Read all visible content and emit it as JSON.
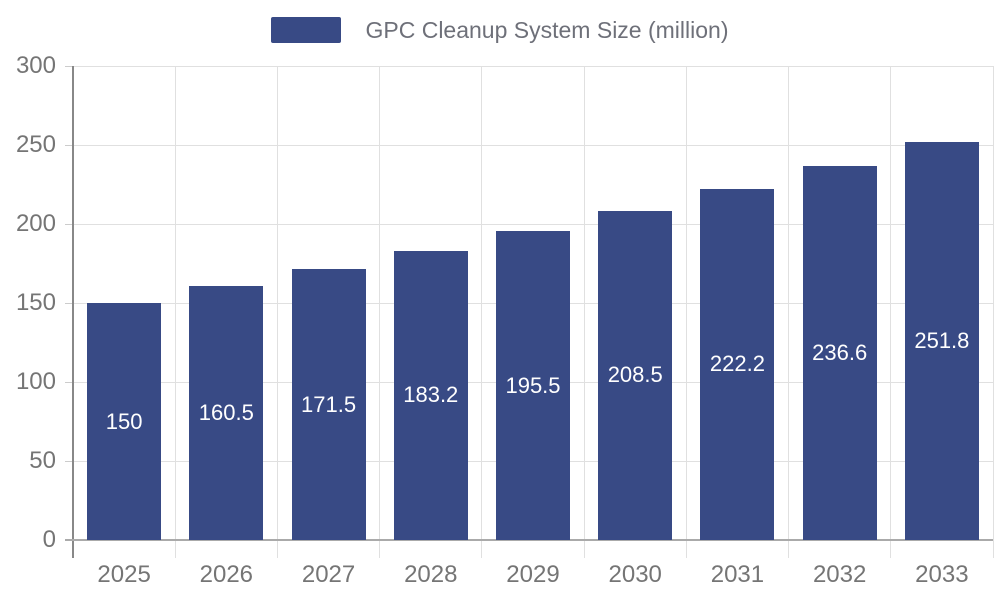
{
  "legend": {
    "label": "GPC Cleanup System Size (million)"
  },
  "chart_data": {
    "type": "bar",
    "title": "GPC Cleanup System Size (million)",
    "series_name": "GPC Cleanup System Size (million)",
    "categories": [
      "2025",
      "2026",
      "2027",
      "2028",
      "2029",
      "2030",
      "2031",
      "2032",
      "2033"
    ],
    "values": [
      150,
      160.5,
      171.5,
      183.2,
      195.5,
      208.5,
      222.2,
      236.6,
      251.8
    ],
    "xlabel": "",
    "ylabel": "",
    "ylim": [
      0,
      300
    ],
    "yticks": [
      0,
      50,
      100,
      150,
      200,
      250,
      300
    ],
    "grid": true,
    "legend_position": "top-center",
    "bar_labels_inside": true,
    "colors": {
      "bar": "#384A85",
      "bar_label": "#FFFFFF",
      "axis_text": "#757575",
      "legend_text": "#6E7079",
      "gridline": "#E0E0E0",
      "y_axis_line": "#888888",
      "x_axis_line": "#AAAAAA",
      "tick": "#CCCCCC",
      "background": "#FFFFFF"
    }
  }
}
